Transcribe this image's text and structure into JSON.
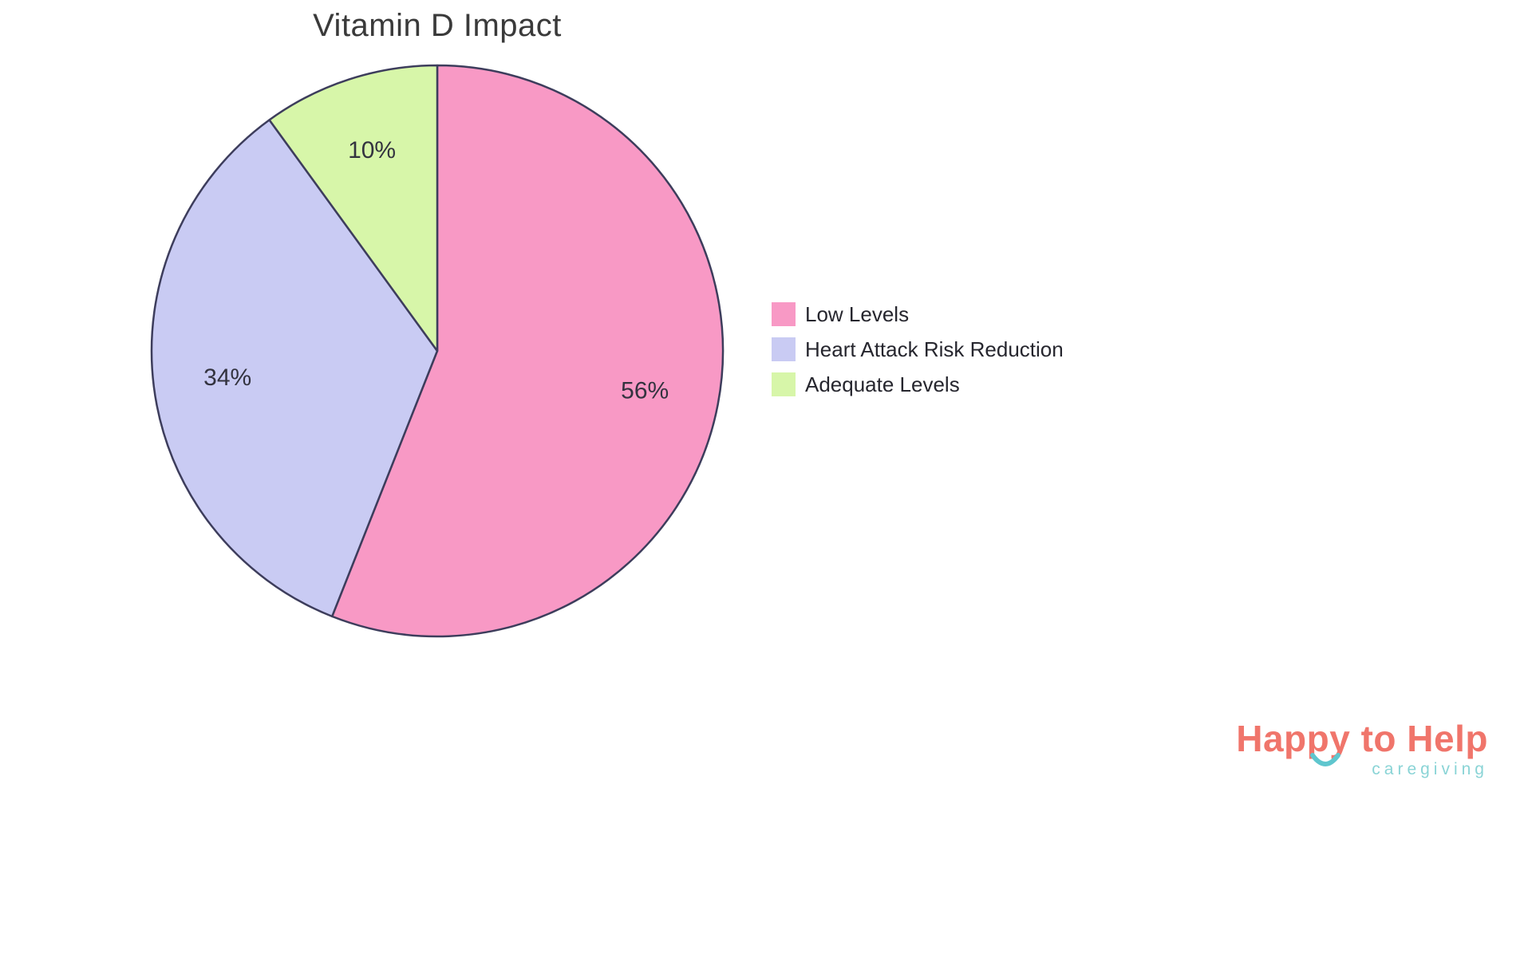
{
  "chart_data": {
    "type": "pie",
    "title": "Vitamin D Impact",
    "slices": [
      {
        "label": "Low Levels",
        "value": 56,
        "color": "#F899C5"
      },
      {
        "label": "Heart Attack Risk Reduction",
        "value": 34,
        "color": "#C9CBF3"
      },
      {
        "label": "Adequate Levels",
        "value": 10,
        "color": "#D7F6A9"
      }
    ],
    "start_angle_deg": 0,
    "direction": "clockwise",
    "stroke_color": "#3D3D5C",
    "label_format": "percent",
    "legend_position": "right"
  },
  "branding": {
    "name": "Happy to Help",
    "tagline": "caregiving",
    "name_color": "#F0756B",
    "smile_color": "#5FC6CE",
    "tagline_color": "#8AD4D6"
  }
}
